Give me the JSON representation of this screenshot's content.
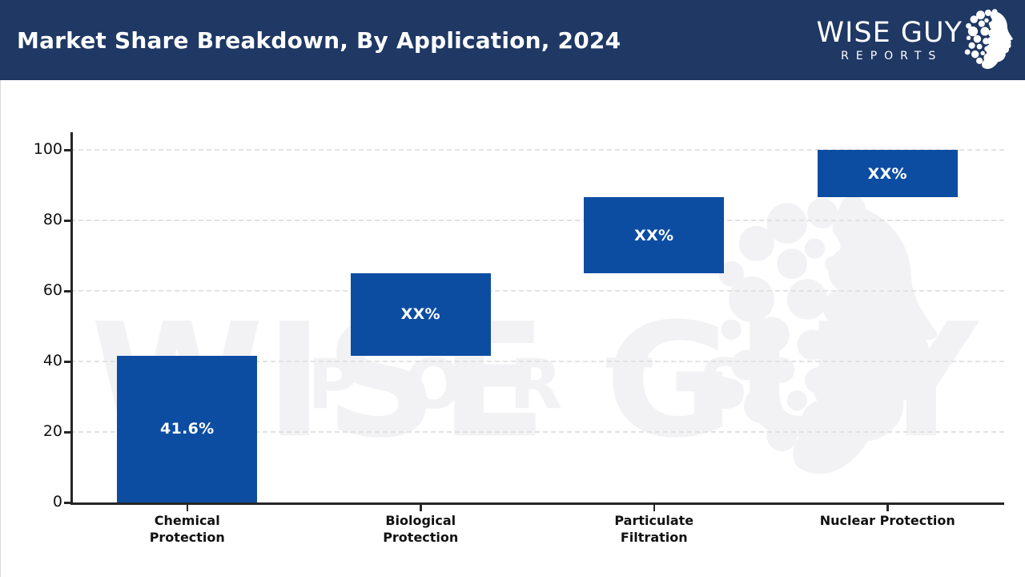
{
  "header": {
    "title": "Market Share Breakdown, By Application, 2024",
    "logo": {
      "line1": "WISE GUY",
      "line2": "REPORTS"
    }
  },
  "watermark": {
    "line1": "WISE GUY",
    "line2": "REPORTS"
  },
  "colors": {
    "header_bg": "#1f3864",
    "bar": "#0c4da2",
    "grid": "#e2e2e2",
    "axis": "#262626",
    "watermark": "#f2f2f4",
    "bar_label": "#ffffff"
  },
  "chart_data": {
    "type": "bar",
    "subtype": "waterfall-stacked-percentage",
    "title": "Market Share Breakdown, By Application, 2024",
    "categories": [
      "Chemical\nProtection",
      "Biological\nProtection",
      "Particulate\nFiltration",
      "Nuclear Protection"
    ],
    "segments": [
      {
        "category": "Chemical Protection",
        "start": 0,
        "end": 41.6,
        "label": "41.6%"
      },
      {
        "category": "Biological Protection",
        "start": 41.6,
        "end": 65.0,
        "label": "XX%"
      },
      {
        "category": "Particulate Filtration",
        "start": 65.0,
        "end": 86.5,
        "label": "XX%"
      },
      {
        "category": "Nuclear Protection",
        "start": 86.5,
        "end": 100,
        "label": "XX%"
      }
    ],
    "yticks": [
      0,
      20,
      40,
      60,
      80,
      100
    ],
    "ylim": [
      0,
      105
    ],
    "xlabel": "",
    "ylabel": "",
    "legend": "none",
    "grid": "horizontal-dashed"
  }
}
